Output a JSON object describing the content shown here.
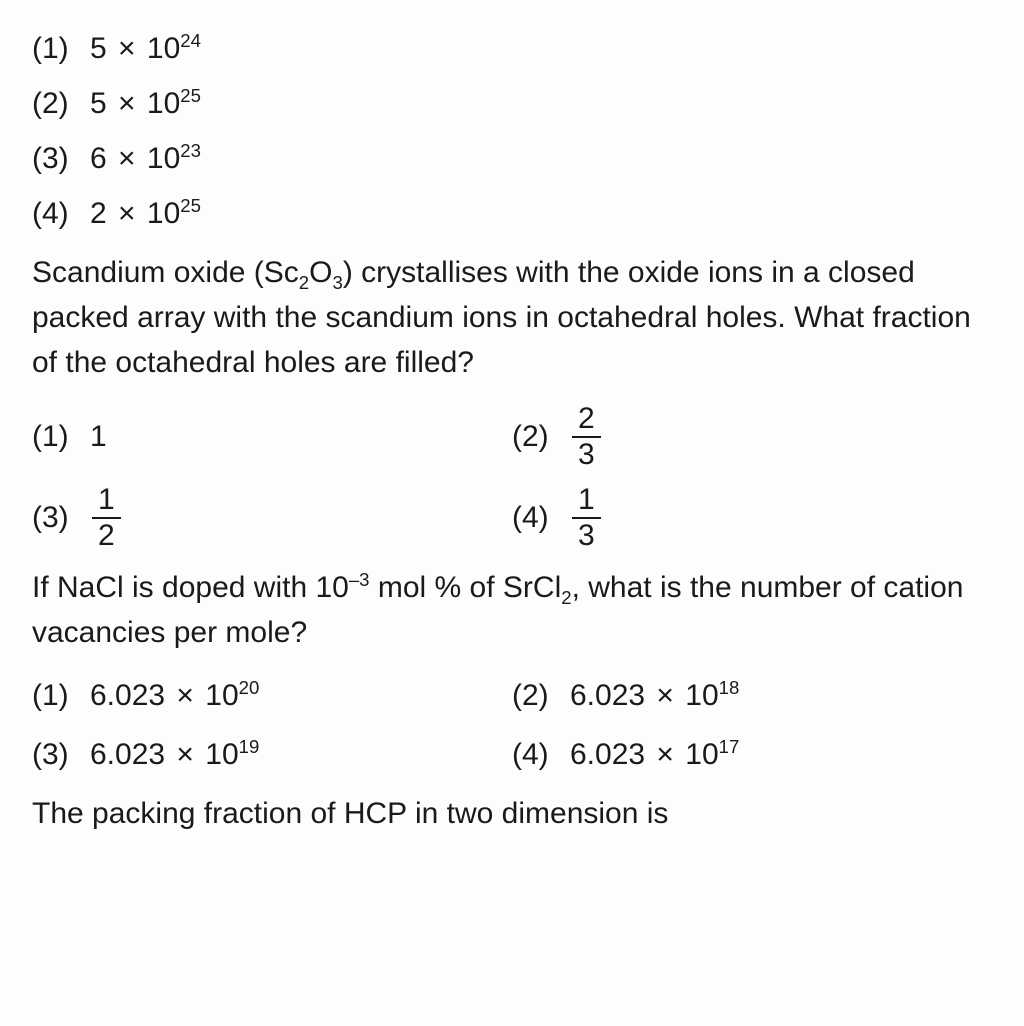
{
  "typography": {
    "font_family": "Arial, Helvetica, sans-serif",
    "base_fontsize_pt": 22,
    "color": "#1a1a1a",
    "background": "#fdfdfd"
  },
  "q1_options": [
    {
      "label": "(1)",
      "coef": "5",
      "mult": "×",
      "base": "10",
      "exp": "24"
    },
    {
      "label": "(2)",
      "coef": "5",
      "mult": "×",
      "base": "10",
      "exp": "25"
    },
    {
      "label": "(3)",
      "coef": "6",
      "mult": "×",
      "base": "10",
      "exp": "23"
    },
    {
      "label": "(4)",
      "coef": "2",
      "mult": "×",
      "base": "10",
      "exp": "25"
    }
  ],
  "q2": {
    "text_pre": "Scandium oxide (Sc",
    "sub1": "2",
    "mid": "O",
    "sub2": "3",
    "text_post": ") crystallises with the oxide ions in a closed packed array with the scandium ions in octahedral holes. What fraction of the octahedral holes are filled?",
    "options": {
      "o1": {
        "label": "(1)",
        "value": "1"
      },
      "o2": {
        "label": "(2)",
        "num": "2",
        "den": "3"
      },
      "o3": {
        "label": "(3)",
        "num": "1",
        "den": "2"
      },
      "o4": {
        "label": "(4)",
        "num": "1",
        "den": "3"
      }
    }
  },
  "q3": {
    "text_pre": "If NaCl is doped with 10",
    "exp": "–3",
    "text_mid": " mol % of SrCl",
    "sub": "2",
    "text_post": ", what is the number of cation vacancies per mole?",
    "options": {
      "o1": {
        "label": "(1)",
        "coef": "6.023",
        "mult": "×",
        "base": "10",
        "exp": "20"
      },
      "o2": {
        "label": "(2)",
        "coef": "6.023",
        "mult": "×",
        "base": "10",
        "exp": "18"
      },
      "o3": {
        "label": "(3)",
        "coef": "6.023",
        "mult": "×",
        "base": "10",
        "exp": "19"
      },
      "o4": {
        "label": "(4)",
        "coef": "6.023",
        "mult": "×",
        "base": "10",
        "exp": "17"
      }
    }
  },
  "q4": {
    "text": "The packing fraction of HCP in two dimension is"
  }
}
